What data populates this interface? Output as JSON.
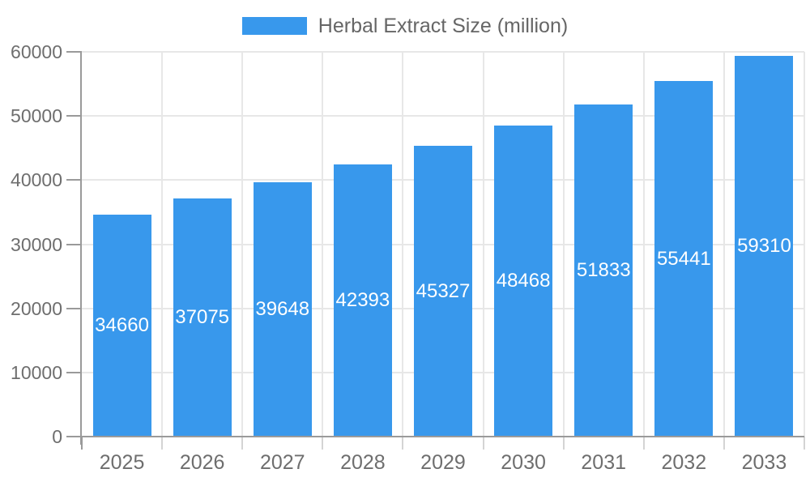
{
  "chart_data": {
    "type": "bar",
    "title": "",
    "legend": "Herbal Extract Size (million)",
    "legend_position": "top-center",
    "series_name": "Herbal Extract Size (million)",
    "categories": [
      "2025",
      "2026",
      "2027",
      "2028",
      "2029",
      "2030",
      "2031",
      "2032",
      "2033"
    ],
    "values": [
      34660,
      37075,
      39648,
      42393,
      45327,
      48468,
      51833,
      55441,
      59310
    ],
    "value_labels_shown": true,
    "value_label_position": "inside-center",
    "xlabel": "",
    "ylabel": "",
    "ylim": [
      0,
      60000
    ],
    "ytick_step": 10000,
    "ytick_labels": [
      "0",
      "10000",
      "20000",
      "30000",
      "40000",
      "50000",
      "60000"
    ],
    "grid": true,
    "colors": {
      "bar": "#3898EC",
      "axis": "#9a9a9a",
      "grid": "#e7e7e7",
      "x_tick_mark": "#d4d4d4",
      "axis_text": "#6e6e6e",
      "legend_text": "#666666",
      "value_label_text": "#ffffff",
      "background": "#ffffff"
    }
  }
}
